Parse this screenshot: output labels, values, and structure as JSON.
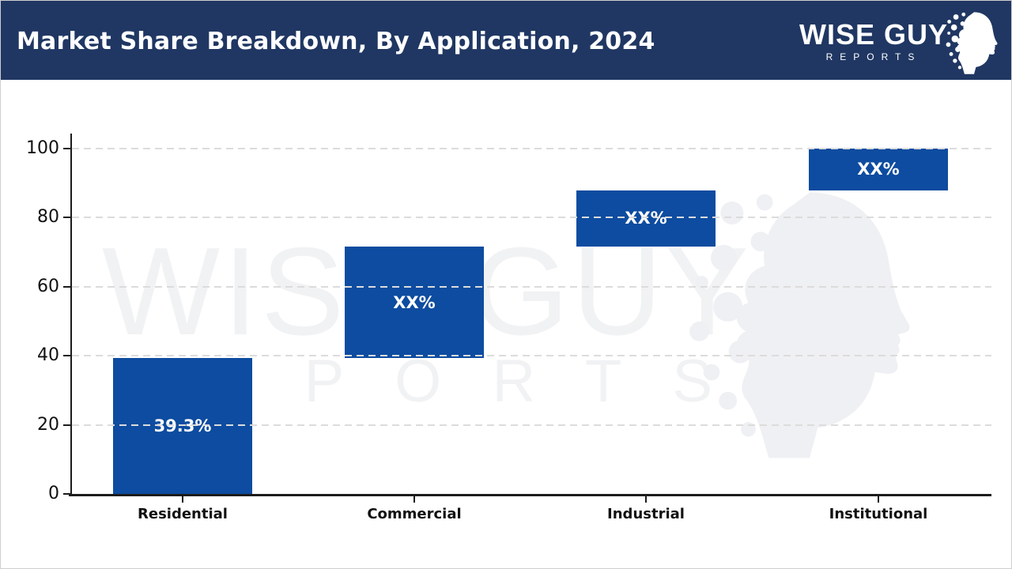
{
  "header": {
    "title": "Market Share Breakdown, By Application, 2024",
    "logo": {
      "line1": "WISE GUY",
      "line2": "REPORTS"
    }
  },
  "watermark": {
    "line1": "WISE GUY",
    "line2": "REPORTS"
  },
  "colors": {
    "header_bg": "#203763",
    "bar": "#0d4ca0",
    "axis": "#1c1c1c",
    "gridline": "#dcdcdc",
    "watermark": "#f1f2f4",
    "bar_label": "#ffffff"
  },
  "chart_data": {
    "type": "bar",
    "subtype": "waterfall-floating-bars",
    "title": "Market Share Breakdown, By Application, 2024",
    "categories": [
      "Residential",
      "Commercial",
      "Industrial",
      "Institutional"
    ],
    "segments": [
      {
        "category": "Residential",
        "start": 0,
        "end": 39.3,
        "label": "39.3%"
      },
      {
        "category": "Commercial",
        "start": 39.3,
        "end": 71.6,
        "label": "XX%"
      },
      {
        "category": "Industrial",
        "start": 71.6,
        "end": 87.9,
        "label": "XX%"
      },
      {
        "category": "Institutional",
        "start": 87.9,
        "end": 100,
        "label": "XX%"
      }
    ],
    "xlabel": "",
    "ylabel": "",
    "ylim": [
      0,
      100
    ],
    "yticks": [
      0,
      20,
      40,
      60,
      80,
      100
    ],
    "grid": "horizontal-dashed",
    "legend": "none"
  }
}
